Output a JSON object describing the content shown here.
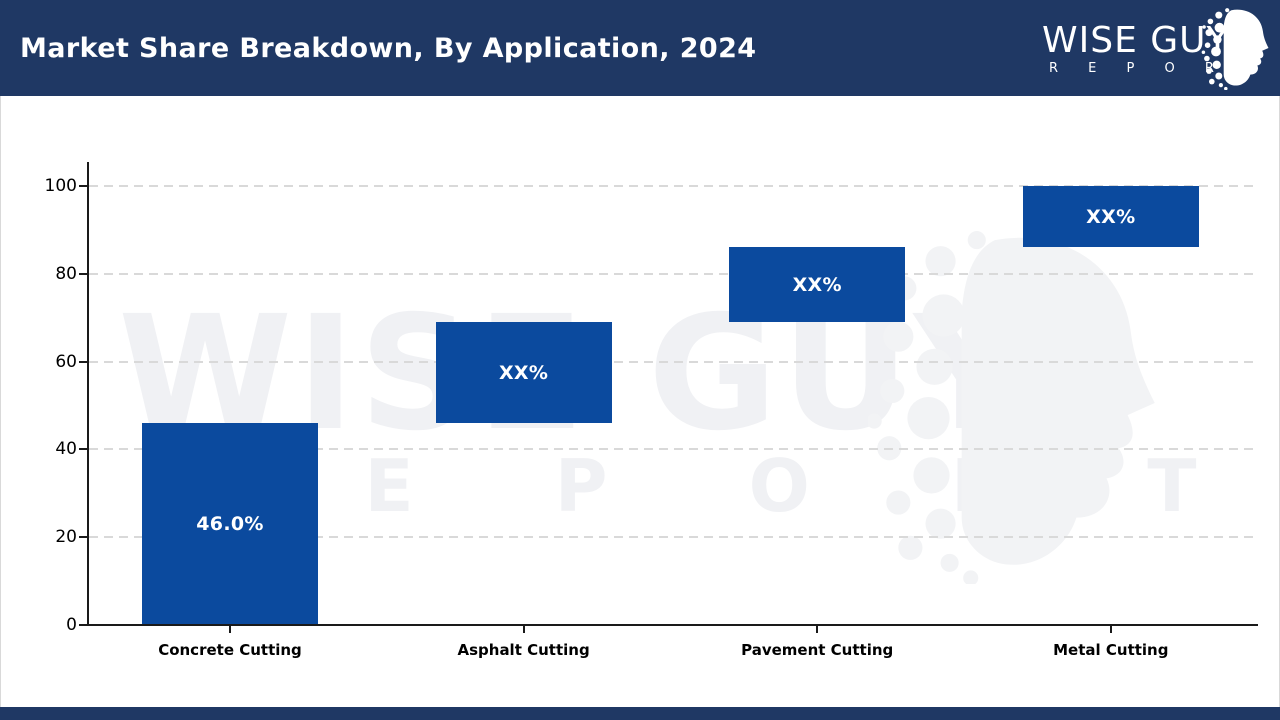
{
  "header": {
    "title": "Market Share Breakdown, By Application, 2024",
    "logo": {
      "line1": "WISE GUY",
      "line2": "R E P O R T S"
    }
  },
  "watermark": {
    "line1": "WISE GUY",
    "line2": "R E P O R T S"
  },
  "colors": {
    "header_bg": "#1f3864",
    "bar": "#0b4a9e",
    "grid": "#d9d9d9",
    "axis": "#1a1a1a",
    "watermark": "#f0f1f4"
  },
  "chart_data": {
    "type": "bar",
    "variant": "waterfall",
    "title": "Market Share Breakdown, By Application, 2024",
    "categories": [
      "Concrete Cutting",
      "Asphalt Cutting",
      "Pavement Cutting",
      "Metal Cutting"
    ],
    "segments": [
      {
        "category": "Concrete Cutting",
        "start": 0,
        "end": 46,
        "label": "46.0%"
      },
      {
        "category": "Asphalt Cutting",
        "start": 46,
        "end": 69,
        "label": "XX%"
      },
      {
        "category": "Pavement Cutting",
        "start": 69,
        "end": 86,
        "label": "XX%"
      },
      {
        "category": "Metal Cutting",
        "start": 86,
        "end": 100,
        "label": "XX%"
      }
    ],
    "ylim": [
      0,
      100
    ],
    "yticks": [
      0,
      20,
      40,
      60,
      80,
      100
    ],
    "grid": "horizontal-dashed",
    "legend": "none"
  }
}
